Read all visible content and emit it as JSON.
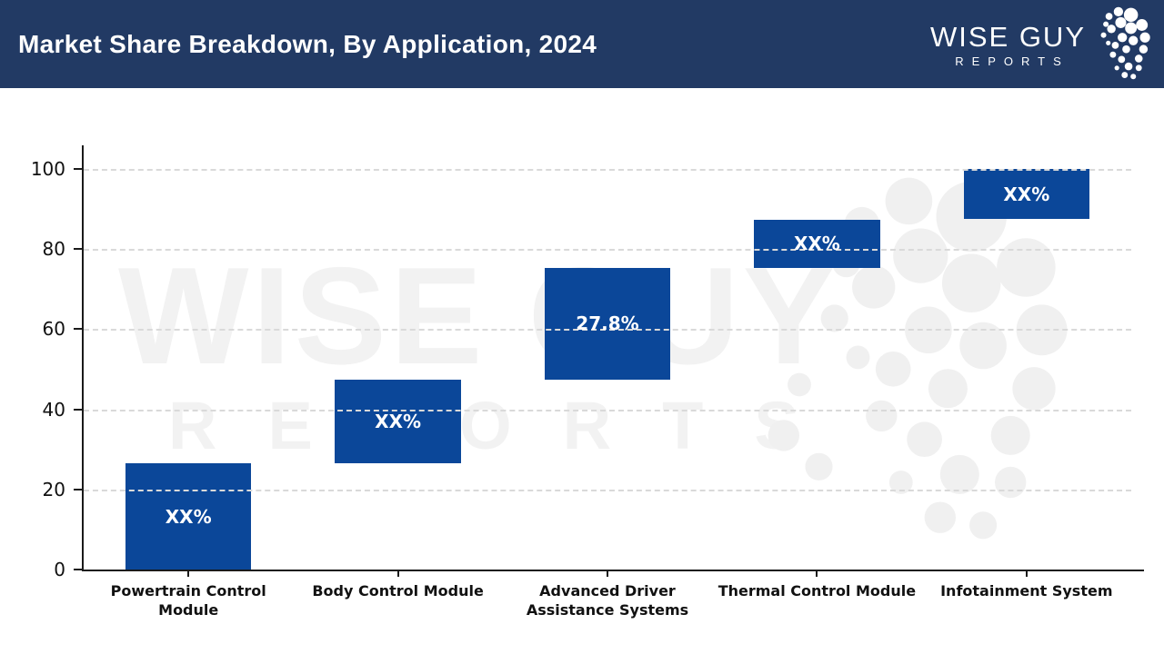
{
  "header": {
    "title": "Market Share Breakdown, By Application, 2024",
    "logo": {
      "line1": "WISE GUY",
      "line2": "REPORTS"
    }
  },
  "watermark": {
    "line1": "WISE GUY",
    "line2": "REPORTS"
  },
  "colors": {
    "header_bg": "#223a64",
    "bar": "#0b4799",
    "gridline": "#d9d9d9",
    "axis": "#1a1a1a",
    "bar_label": "#ffffff",
    "watermark": "#f2f2f2"
  },
  "chart_data": {
    "type": "bar",
    "subtype": "floating-waterfall",
    "title": "Market Share Breakdown, By Application, 2024",
    "categories": [
      "Powertrain Control Module",
      "Body Control Module",
      "Advanced Driver Assistance Systems",
      "Thermal Control Module",
      "Infotainment System"
    ],
    "segments": [
      {
        "start": 0,
        "end": 26.5,
        "label": "XX%"
      },
      {
        "start": 26.5,
        "end": 47.5,
        "label": "XX%"
      },
      {
        "start": 47.5,
        "end": 75.3,
        "label": "27.8%"
      },
      {
        "start": 75.3,
        "end": 87.3,
        "label": "XX%"
      },
      {
        "start": 87.5,
        "end": 100,
        "label": "XX%"
      }
    ],
    "yticks": [
      0,
      20,
      40,
      60,
      80,
      100
    ],
    "ylim": [
      0,
      100
    ],
    "xlabel": "",
    "ylabel": "",
    "grid": "horizontal-dashed",
    "legend": "none",
    "bar_width_fraction": 0.6
  }
}
